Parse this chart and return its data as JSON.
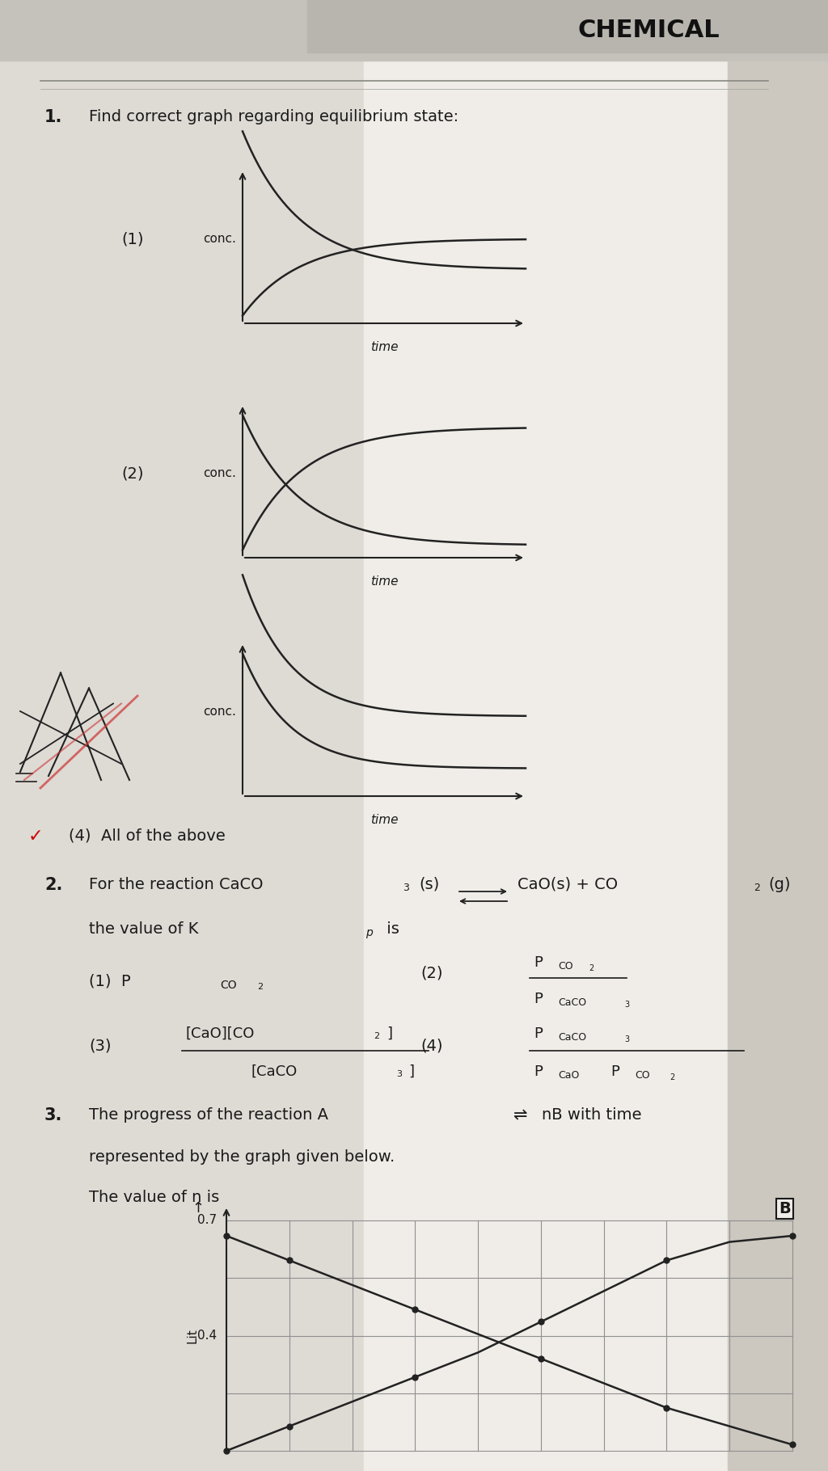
{
  "title": "CHEMICAL",
  "bg_color": "#f0ede8",
  "page_bg": "#f5f3ef",
  "left_bg": "#e8e5e0",
  "text_color": "#1a1a1a",
  "graph_color": "#222222",
  "red_color": "#cc0000",
  "header_bg": "#d0cdc8",
  "q1_label": "1.",
  "q1_text": "Find correct graph regarding equilibrium state:",
  "graph1_label": "(1)",
  "graph2_label": "(2)",
  "graph4_label": "(4)  All of the above",
  "conc_label": "conc.",
  "time_label": "time",
  "q2_label": "2.",
  "q2_text1": "For the reaction CaCO",
  "q2_text1_sub": "3",
  "q2_text2": "(s)",
  "q2_text3": "CaO(s) + CO",
  "q2_text3_sub": "2",
  "q2_text3_end": "(g)",
  "q2_sub": "the value of K",
  "q2_sub_p": "p",
  "q2_sub2": " is",
  "opt1_text": "(1)  P",
  "opt1_sub": "CO",
  "opt1_sub2": "2",
  "opt2_label": "(2)",
  "opt2_num": "P",
  "opt2_num_sub": "CO",
  "opt2_num_sub2": "2",
  "opt2_den": "P",
  "opt2_den_sub": "CaCO",
  "opt2_den_sub2": "3",
  "opt3_label": "(3)",
  "opt3_num": "[CaO][CO",
  "opt3_num_sub": "2",
  "opt3_num_end": "]",
  "opt3_den": "[CaCO",
  "opt3_den_sub": "3",
  "opt3_den_end": "]",
  "opt4_label": "(4)",
  "opt4_num": "P",
  "opt4_num_sub": "CaCO",
  "opt4_num_sub2": "3",
  "opt4_den1": "P",
  "opt4_den1_sub": "CaO",
  "opt4_den2": "P",
  "opt4_den2_sub": "CO",
  "opt4_den2_sub2": "2",
  "q3_label": "3.",
  "q3_text1": "The progress of the reaction A",
  "q3_text2": "nB with time",
  "q3_sub1": "represented by the graph given below.",
  "q3_sub2": "The value of n is",
  "g3_y07": "0.7",
  "g3_y04": "0.4",
  "g3_B": "B",
  "g3_yaxis": "↑",
  "g3_lit": "Lit"
}
